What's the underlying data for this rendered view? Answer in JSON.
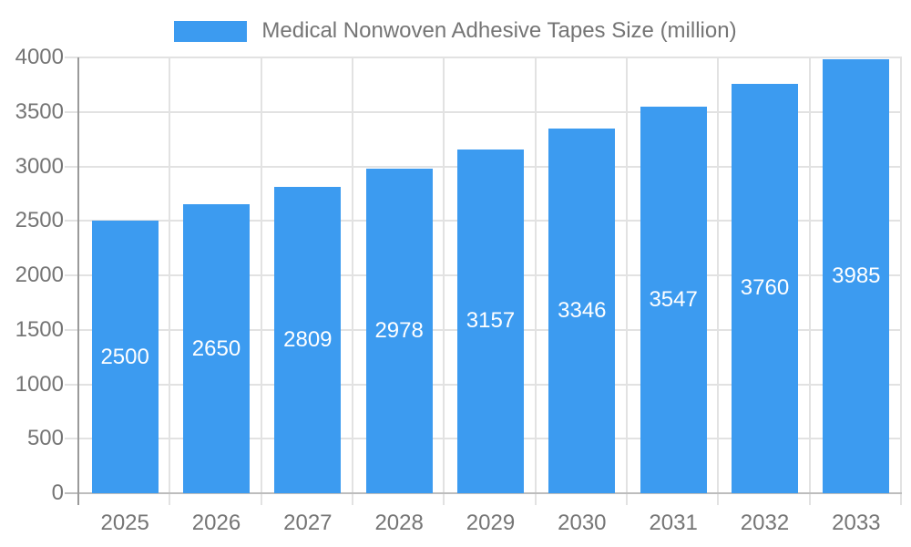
{
  "chart_data": {
    "type": "bar",
    "title": "Medical Nonwoven Adhesive Tapes Size (million)",
    "categories": [
      "2025",
      "2026",
      "2027",
      "2028",
      "2029",
      "2030",
      "2031",
      "2032",
      "2033"
    ],
    "values": [
      2500,
      2650,
      2809,
      2978,
      3157,
      3346,
      3547,
      3760,
      3985
    ],
    "value_labels": [
      "2500",
      "2650",
      "2809",
      "2978",
      "3157",
      "3346",
      "3547",
      "3760",
      "3985"
    ],
    "ylabel": "",
    "xlabel": "",
    "ylim": [
      0,
      4000
    ],
    "ytick_step": 500,
    "ytick_labels": [
      "0",
      "500",
      "1000",
      "1500",
      "2000",
      "2500",
      "3000",
      "3500",
      "4000"
    ],
    "grid": true,
    "legend_position": "top-center",
    "value_labels_position": "inside-center",
    "colors": {
      "bar": "#3C9BF0",
      "bar_value_text": "#FFFFFF",
      "axis_text": "#757575",
      "legend_text": "#757575",
      "gridline": "#E2E2E2",
      "y_axis_line": "#9A9A9A",
      "x_axis_line": "#BDBDBD",
      "background": "#FFFFFF"
    }
  }
}
